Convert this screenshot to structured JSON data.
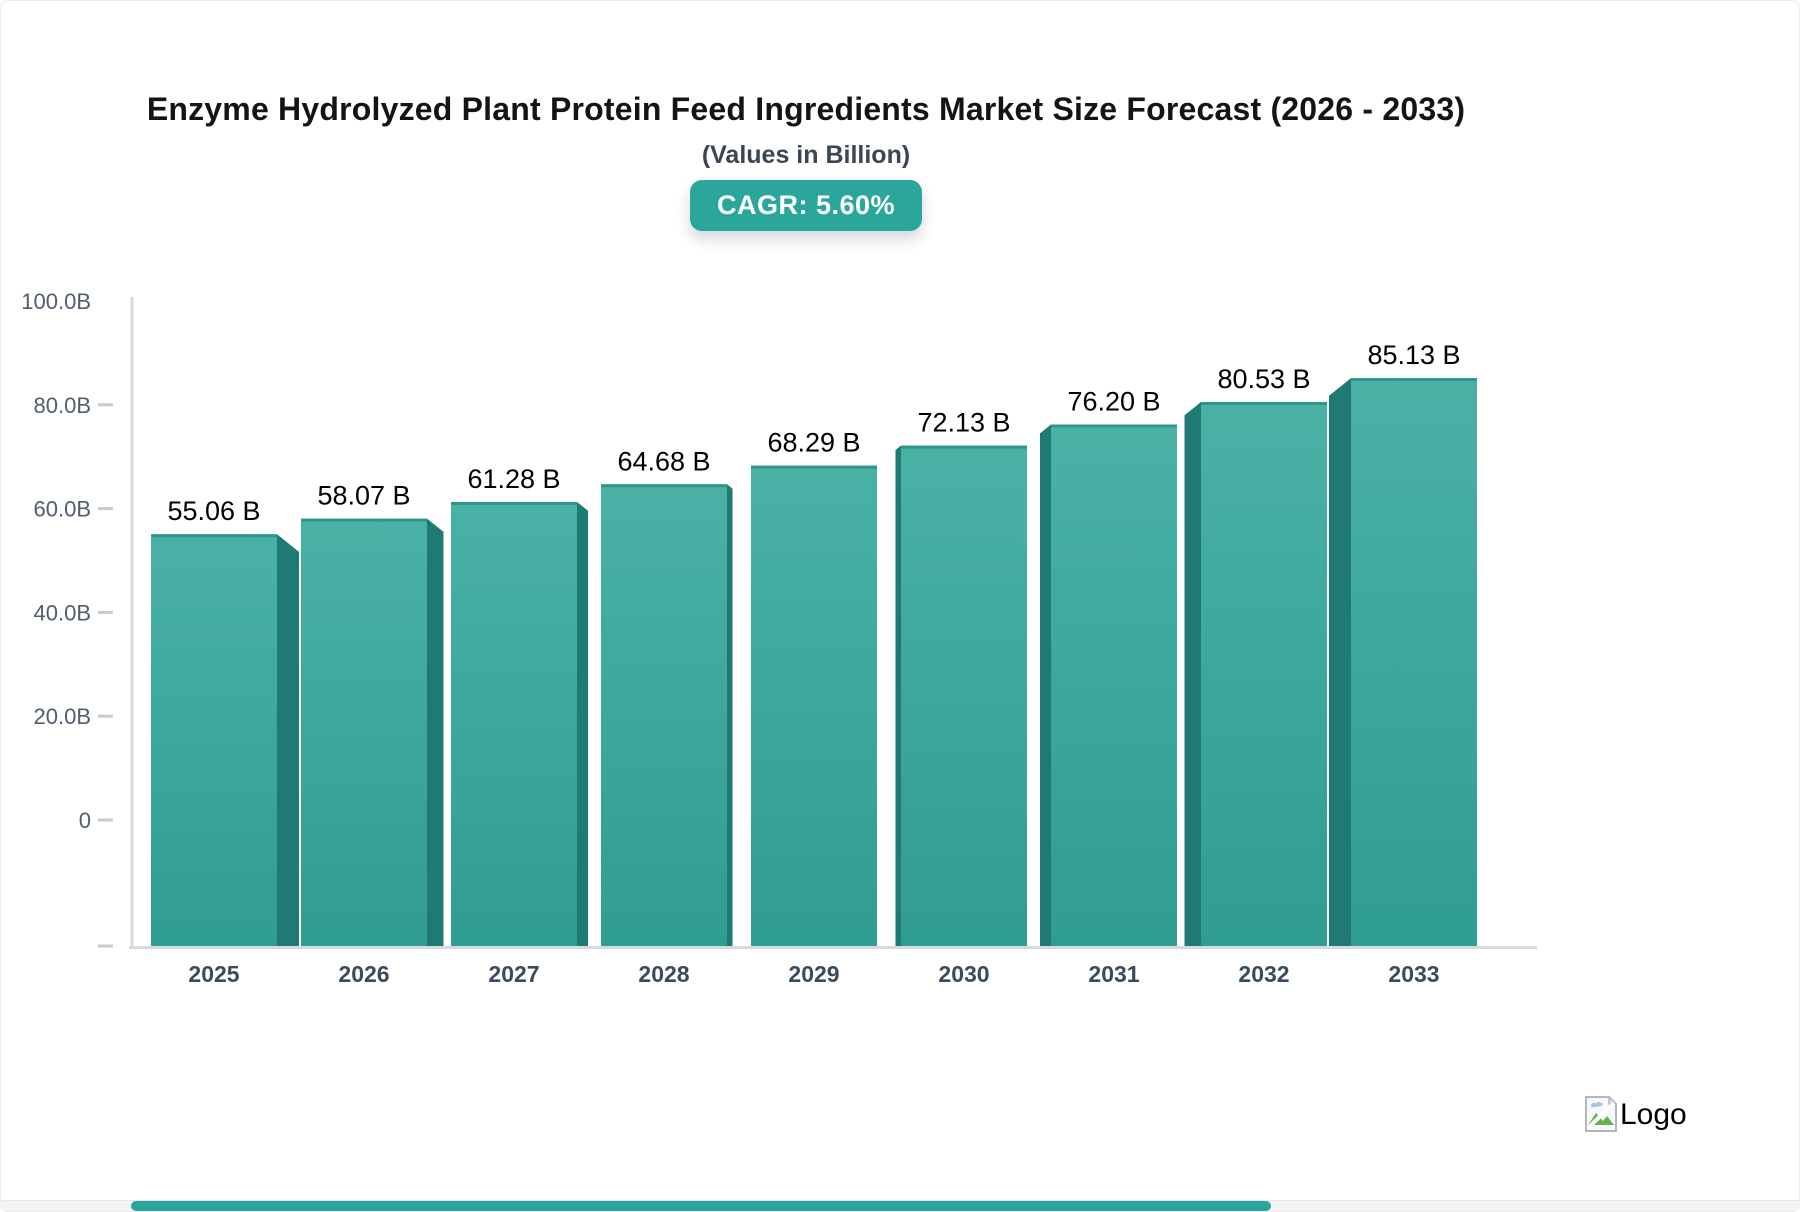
{
  "header": {
    "title": "Enzyme Hydrolyzed Plant Protein Feed Ingredients Market Size Forecast (2026 - 2033)",
    "subtitle": "(Values in Billion)",
    "cagr_label": "CAGR: 5.60%"
  },
  "chart_data": {
    "type": "bar",
    "title": "Enzyme Hydrolyzed Plant Protein Feed Ingredients Market Size Forecast (2026 - 2033)",
    "subtitle": "(Values in Billion)",
    "xlabel": "",
    "ylabel": "",
    "ylim": [
      0,
      100
    ],
    "grid": false,
    "legend": false,
    "categories": [
      "2025",
      "2026",
      "2027",
      "2028",
      "2029",
      "2030",
      "2031",
      "2032",
      "2033"
    ],
    "values": [
      55.06,
      58.07,
      61.28,
      64.68,
      68.29,
      72.13,
      76.2,
      80.53,
      85.13
    ],
    "value_labels": [
      "55.06 B",
      "58.07 B",
      "61.28 B",
      "64.68 B",
      "68.29 B",
      "72.13 B",
      "76.20 B",
      "80.53 B",
      "85.13 B"
    ],
    "ytick_values": [
      100,
      80,
      60,
      40,
      20,
      0
    ],
    "ytick_labels": [
      "100.0B",
      "80.0B",
      "60.0B",
      "40.0B",
      "20.0B",
      "0"
    ]
  },
  "footer": {
    "logo_text": "Logo",
    "logo_icon": "broken-image-icon"
  },
  "colors": {
    "accent_teal": "#2BA69A",
    "bar_front_top": "#4AB1A5",
    "bar_front_bottom": "#309D92",
    "bar_side": "#1E7A73",
    "bar_top_edge": "#2E968B",
    "axis_line": "#D8D9DE",
    "tick_dash": "#C7CBD2",
    "ytick_text": "#4E5D6F",
    "xtick_text": "#3A4B5E",
    "value_label_text": "#000000",
    "title_text": "#121417",
    "subtitle_text": "#3A4653"
  }
}
